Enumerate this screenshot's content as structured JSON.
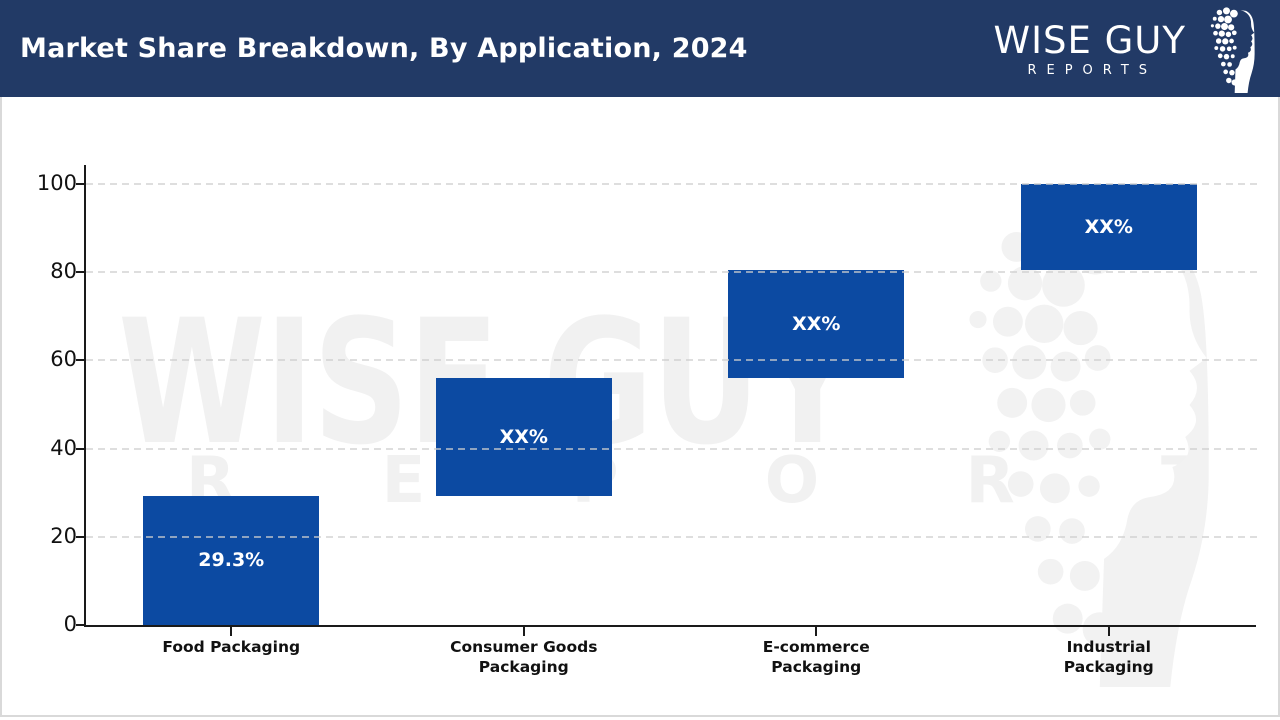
{
  "header": {
    "title": "Market Share Breakdown, By Application, 2024",
    "logo": {
      "line1": "WISE GUY",
      "line2": "REPORTS"
    }
  },
  "watermark": {
    "line1": "WISE GUY",
    "line2": "R E P O R T S"
  },
  "chart_data": {
    "type": "bar",
    "subtype": "waterfall",
    "title": "Market Share Breakdown, By Application, 2024",
    "categories": [
      "Food Packaging",
      "Consumer Goods Packaging",
      "E-commerce Packaging",
      "Industrial Packaging"
    ],
    "category_label_lines": [
      [
        "Food Packaging"
      ],
      [
        "Consumer Goods",
        "Packaging"
      ],
      [
        "E-commerce",
        "Packaging"
      ],
      [
        "Industrial",
        "Packaging"
      ]
    ],
    "segments": [
      {
        "category": "Food Packaging",
        "start": 0,
        "end": 29.3,
        "label": "29.3%"
      },
      {
        "category": "Consumer Goods Packaging",
        "start": 29.3,
        "end": 56,
        "label": "XX%"
      },
      {
        "category": "E-commerce Packaging",
        "start": 56,
        "end": 80.5,
        "label": "XX%"
      },
      {
        "category": "Industrial Packaging",
        "start": 80.5,
        "end": 100,
        "label": "XX%"
      }
    ],
    "xlabel": "",
    "ylabel": "",
    "ylim": [
      0,
      100
    ],
    "yticks": [
      0,
      20,
      40,
      60,
      80,
      100
    ],
    "grid": "horizontal-dashed",
    "legend": "none",
    "colors": {
      "bar": "#0c4aa2",
      "bar_label": "#ffffff",
      "axis": "#1a1a1a",
      "gridline": "#dcdcdc",
      "header_bg": "#223a66",
      "watermark": "#f1f1f1"
    }
  }
}
